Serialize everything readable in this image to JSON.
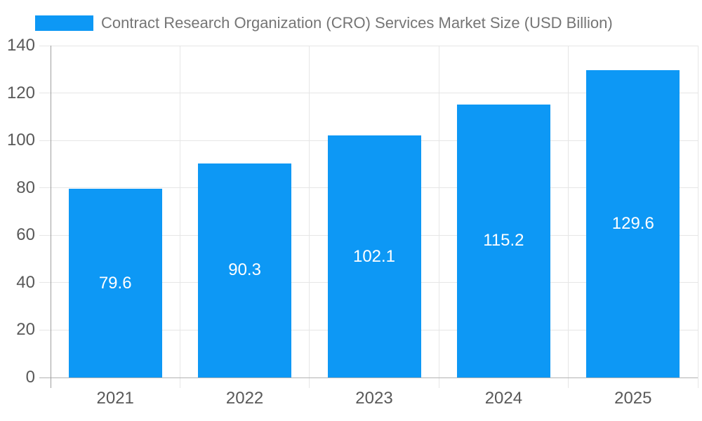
{
  "chart_data": {
    "type": "bar",
    "title": "Contract Research Organization (CRO) Services Market Size (USD Billion)",
    "categories": [
      "2021",
      "2022",
      "2023",
      "2024",
      "2025"
    ],
    "values": [
      79.6,
      90.3,
      102.1,
      115.2,
      129.6
    ],
    "value_labels": [
      "79.6",
      "90.3",
      "102.1",
      "115.2",
      "129.6"
    ],
    "ylim": [
      0,
      140
    ],
    "yticks": [
      0,
      20,
      40,
      60,
      80,
      100,
      120,
      140
    ],
    "xlabel": "",
    "ylabel": "",
    "grid": true,
    "legend_position": "top-left",
    "bar_color": "#0d98f5",
    "bar_value_label_color": "#ffffff",
    "axis_color": "#9e9e9e",
    "baseline_color": "#b3b3b3",
    "gridline_color": "#e6e6e6",
    "tick_label_color": "#595959",
    "title_color": "#757575",
    "background_color": "#ffffff"
  }
}
